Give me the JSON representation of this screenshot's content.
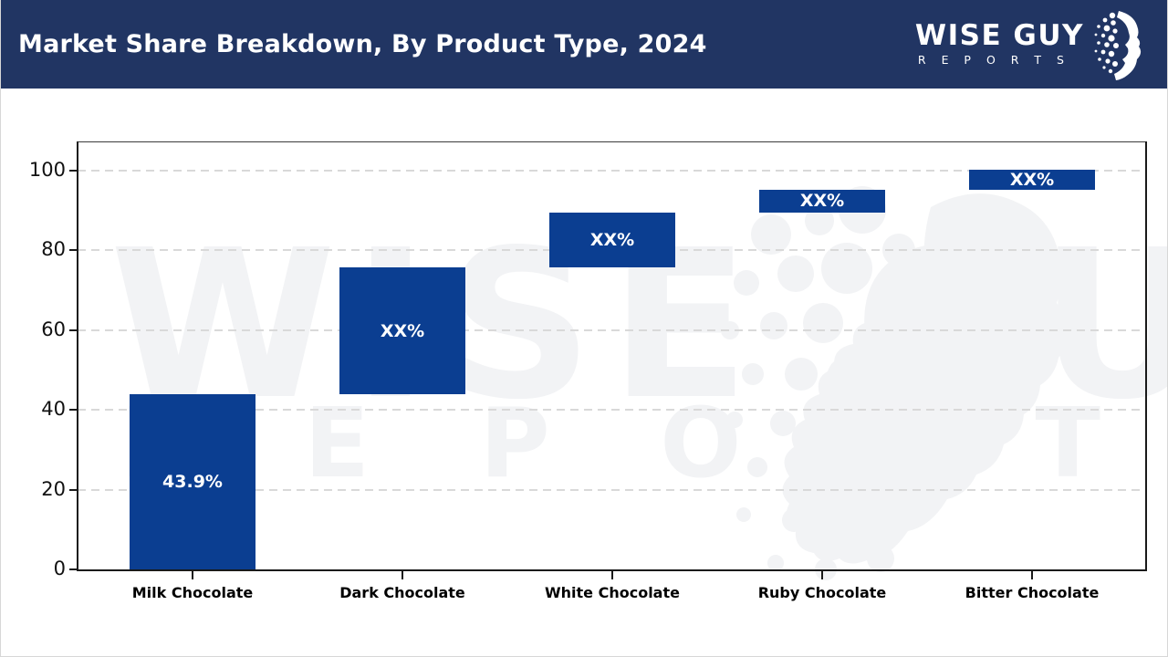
{
  "header": {
    "title": "Market Share Breakdown, By Product Type, 2024",
    "bg_color": "#213563",
    "logo_line1": "WISE GUY",
    "logo_line2": "R E P O R T S"
  },
  "watermark": {
    "line1": "WISE GUY",
    "line2": "R E P O R T S",
    "face_icon_color": "#f2f3f5"
  },
  "chart_data": {
    "type": "bar",
    "subtype": "floating_cumulative_waterfall",
    "title": "Market Share Breakdown, By Product Type, 2024",
    "categories": [
      "Milk Chocolate",
      "Dark Chocolate",
      "White Chocolate",
      "Ruby Chocolate",
      "Bitter Chocolate"
    ],
    "series": [
      {
        "name": "Market Share %",
        "segments": [
          {
            "category": "Milk Chocolate",
            "start": 0,
            "end": 43.9,
            "label": "43.9%"
          },
          {
            "category": "Dark Chocolate",
            "start": 43.9,
            "end": 75.7,
            "label": "XX%"
          },
          {
            "category": "White Chocolate",
            "start": 75.7,
            "end": 89.5,
            "label": "XX%"
          },
          {
            "category": "Ruby Chocolate",
            "start": 89.5,
            "end": 95.3,
            "label": "XX%"
          },
          {
            "category": "Bitter Chocolate",
            "start": 95.3,
            "end": 100.3,
            "label": "XX%"
          }
        ]
      }
    ],
    "ylim": [
      0,
      107
    ],
    "yticks": [
      0,
      20,
      40,
      60,
      80,
      100
    ],
    "xlabel": "",
    "ylabel": "",
    "legend": "none",
    "grid": {
      "horizontal": true,
      "style": "dashed",
      "color": "#d9d9d9"
    },
    "bar_color": "#0b3e91",
    "bar_label_color": "#ffffff",
    "axis_color": "#1a1a1a"
  }
}
